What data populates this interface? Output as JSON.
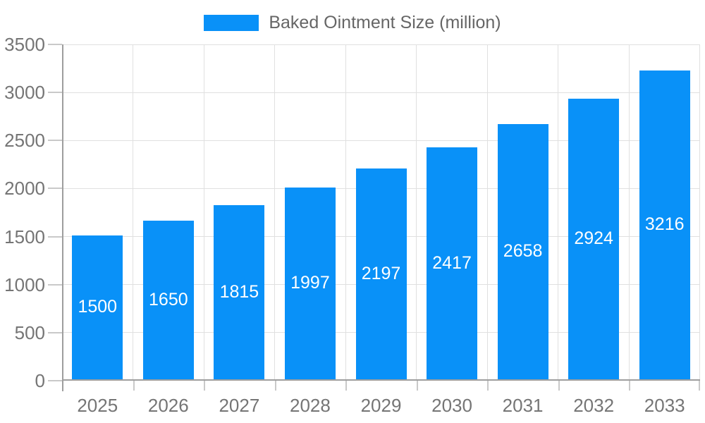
{
  "chart_data": {
    "type": "bar",
    "title": "",
    "legend": {
      "position": "top-center",
      "label": "Baked Ointment Size (million)"
    },
    "categories": [
      "2025",
      "2026",
      "2027",
      "2028",
      "2029",
      "2030",
      "2031",
      "2032",
      "2033"
    ],
    "series": [
      {
        "name": "Baked Ointment Size (million)",
        "values": [
          1500,
          1650,
          1815,
          1997,
          2197,
          2417,
          2658,
          2924,
          3216
        ]
      }
    ],
    "value_labels_shown": true,
    "xlabel": "",
    "ylabel": "",
    "ylim": [
      0,
      3500
    ],
    "ytick_step": 500,
    "yticks": [
      0,
      500,
      1000,
      1500,
      2000,
      2500,
      3000,
      3500
    ],
    "grid": true,
    "colors": {
      "bar": "#0991f8",
      "axis_line": "#9e9e9e",
      "gridline": "#e0e0e0",
      "tick_mark": "#c9c9c9",
      "axis_text": "#757575",
      "legend_text": "#666666",
      "value_label_text": "#ffffff",
      "background": "#ffffff"
    }
  }
}
